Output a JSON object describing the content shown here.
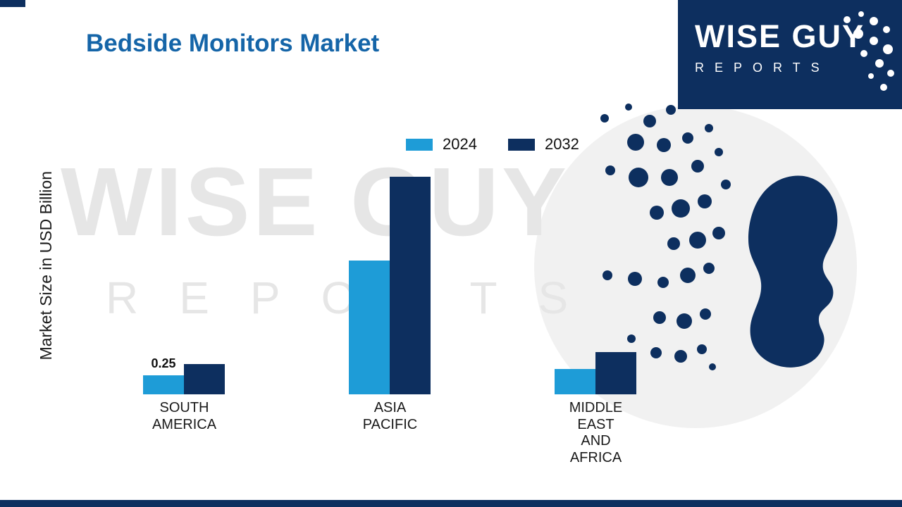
{
  "header": {
    "title": "Bedside Monitors Market"
  },
  "logo": {
    "line1": "WISE GUY",
    "line2": "REPORTS"
  },
  "watermark": {
    "line1": "WISE GUY",
    "line2": "REPORTS"
  },
  "colors": {
    "accent_blue": "#1e9cd7",
    "navy": "#0d2f5f",
    "title_blue": "#1565a8"
  },
  "chart_data": {
    "type": "bar",
    "title": "Bedside Monitors Market",
    "ylabel": "Market Size in USD Billion",
    "ylim": [
      0,
      3
    ],
    "grid": false,
    "legend_position": "top-center",
    "categories": [
      "SOUTH AMERICA",
      "ASIA PACIFIC",
      "MIDDLE EAST AND AFRICA"
    ],
    "categories_lines": [
      [
        "SOUTH",
        "AMERICA"
      ],
      [
        "ASIA",
        "PACIFIC"
      ],
      [
        "MIDDLE",
        "EAST",
        "AND",
        "AFRICA"
      ]
    ],
    "series": [
      {
        "name": "2024",
        "color": "#1e9cd7",
        "values": [
          0.25,
          1.75,
          0.33
        ]
      },
      {
        "name": "2032",
        "color": "#0d2f5f",
        "values": [
          0.4,
          2.85,
          0.55
        ]
      }
    ],
    "value_labels": [
      {
        "text": "0.25",
        "category": "SOUTH AMERICA",
        "series": "2024"
      }
    ]
  }
}
